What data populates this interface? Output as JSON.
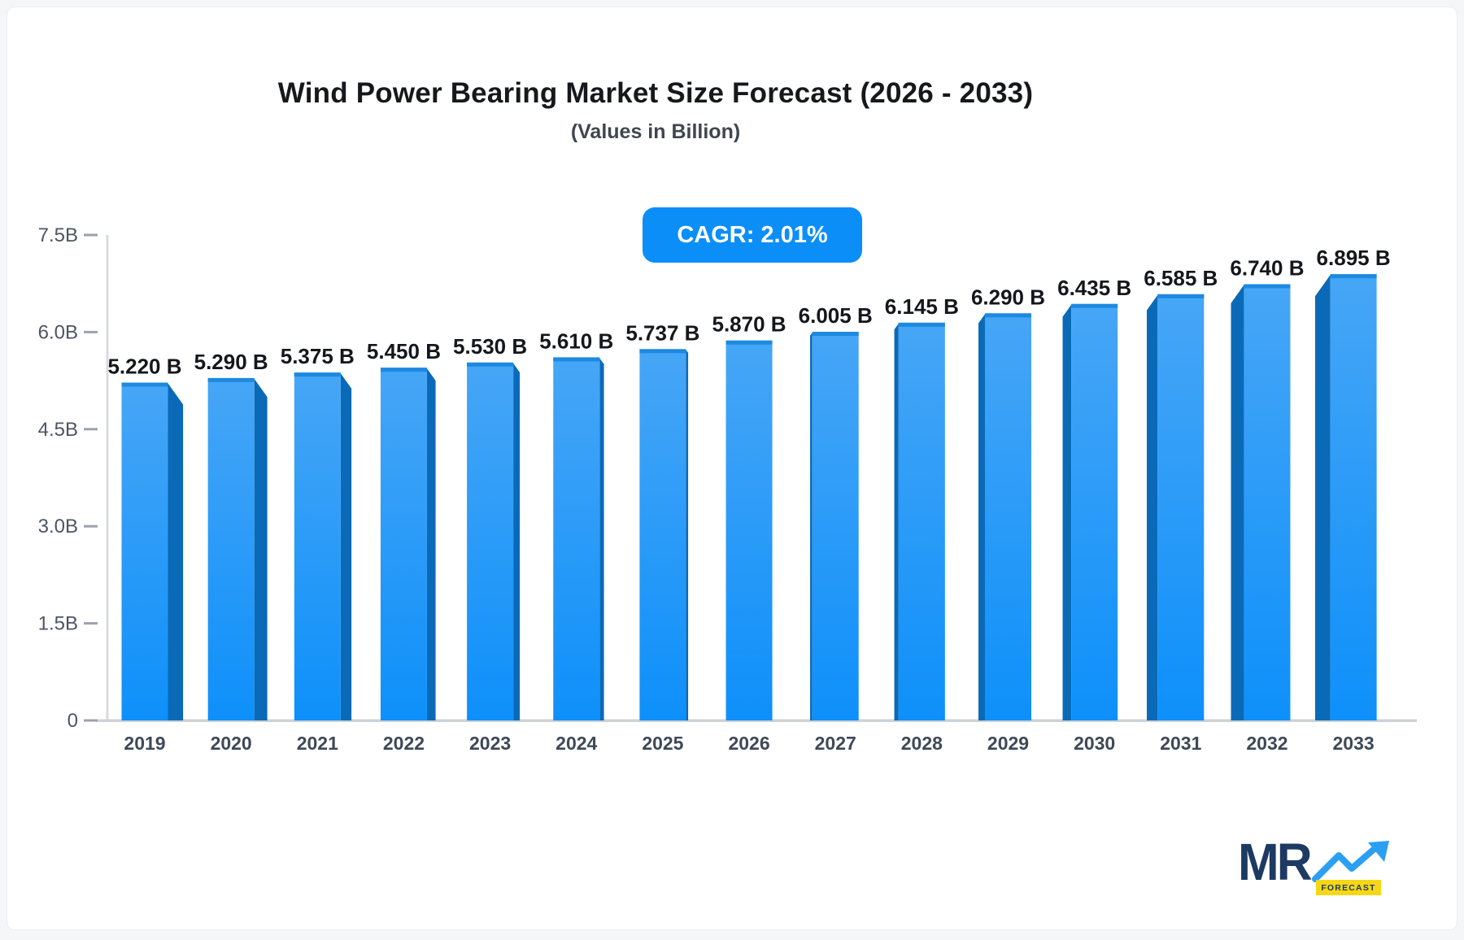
{
  "page": {
    "background": "#f5f6f8",
    "card_background": "#ffffff"
  },
  "header": {
    "title": "Wind Power Bearing Market Size Forecast (2026 - 2033)",
    "subtitle": "(Values in Billion)",
    "cagr_badge": "CAGR: 2.01%",
    "badge_color": "#0c8ef8"
  },
  "chart_data": {
    "type": "bar",
    "title": "Wind Power Bearing Market Size Forecast (2026 - 2033)",
    "subtitle": "(Values in Billion)",
    "annotation": "CAGR: 2.01%",
    "categories": [
      "2019",
      "2020",
      "2021",
      "2022",
      "2023",
      "2024",
      "2025",
      "2026",
      "2027",
      "2028",
      "2029",
      "2030",
      "2031",
      "2032",
      "2033"
    ],
    "values": [
      5.22,
      5.29,
      5.375,
      5.45,
      5.53,
      5.61,
      5.737,
      5.87,
      6.005,
      6.145,
      6.29,
      6.435,
      6.585,
      6.74,
      6.895
    ],
    "value_labels": [
      "5.220 B",
      "5.290 B",
      "5.375 B",
      "5.450 B",
      "5.530 B",
      "5.610 B",
      "5.737 B",
      "5.870 B",
      "6.005 B",
      "6.145 B",
      "6.290 B",
      "6.435 B",
      "6.585 B",
      "6.740 B",
      "6.895 B"
    ],
    "unit": "Billion",
    "ylim": [
      0,
      7.5
    ],
    "ytick_labels": [
      "7.5B",
      "6.0B",
      "4.5B",
      "3.0B",
      "1.5B",
      "0"
    ],
    "ytick_values": [
      7.5,
      6.0,
      4.5,
      3.0,
      1.5,
      0
    ],
    "grid": "off",
    "legend": "none",
    "colors": {
      "bar_front_top": "#47a6f6",
      "bar_front_bottom": "#0e90fa",
      "bar_side": "#0a6ab8",
      "bar_top_strip": "#1886de",
      "axis_line": "#d8dbdf",
      "baseline": "#cdd2d7",
      "tick_dash": "#9aa3ad",
      "ytick_text": "#4c5663",
      "xtick_text": "#3e4957",
      "value_text": "#14171b"
    }
  },
  "logo": {
    "text": "MR",
    "sub_text": "FORECAST",
    "colors": {
      "navy": "#1d3a63",
      "arrow_blue": "#2b9ff2",
      "yellow": "#f6d716"
    }
  }
}
